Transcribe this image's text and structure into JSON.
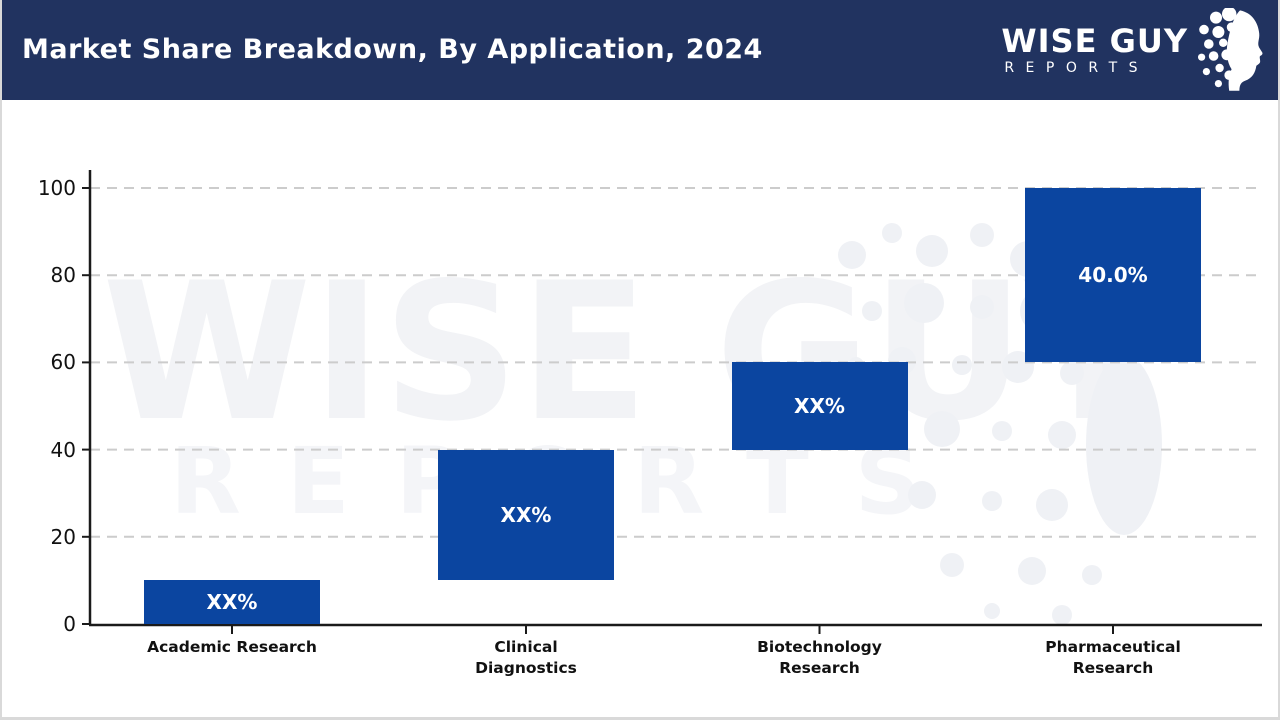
{
  "header": {
    "title": "Market Share Breakdown, By Application, 2024",
    "logo": {
      "name": "WISE GUY",
      "tagline": "REPORTS"
    }
  },
  "watermark": {
    "line1": "WISE GUY",
    "line2": "REPORTS"
  },
  "colors": {
    "header_bg": "#213360",
    "bar": "#0b45a0",
    "bar_label": "#ffffff",
    "grid": "#cccccc",
    "axis": "#1a1a1a",
    "tick_label": "#111111",
    "watermark": "#f2f3f6"
  },
  "chart_data": {
    "type": "bar",
    "subtype": "waterfall",
    "title": "Market Share Breakdown, By Application, 2024",
    "categories": [
      {
        "lines": [
          "Academic Research"
        ]
      },
      {
        "lines": [
          "Clinical",
          "Diagnostics"
        ]
      },
      {
        "lines": [
          "Biotechnology",
          "Research"
        ]
      },
      {
        "lines": [
          "Pharmaceutical",
          "Research"
        ]
      }
    ],
    "segments": [
      {
        "category": "Academic Research",
        "start": 0,
        "end": 10,
        "value": 10,
        "label": "XX%"
      },
      {
        "category": "Clinical Diagnostics",
        "start": 10,
        "end": 40,
        "value": 30,
        "label": "XX%"
      },
      {
        "category": "Biotechnology Research",
        "start": 40,
        "end": 60,
        "value": 20,
        "label": "XX%"
      },
      {
        "category": "Pharmaceutical Research",
        "start": 60,
        "end": 100,
        "value": 40,
        "label": "40.0%"
      }
    ],
    "ylim": [
      0,
      100
    ],
    "yticks": [
      0,
      20,
      40,
      60,
      80,
      100
    ],
    "xlabel": "",
    "ylabel": "",
    "grid": "horizontal-dashed",
    "legend": "none"
  }
}
